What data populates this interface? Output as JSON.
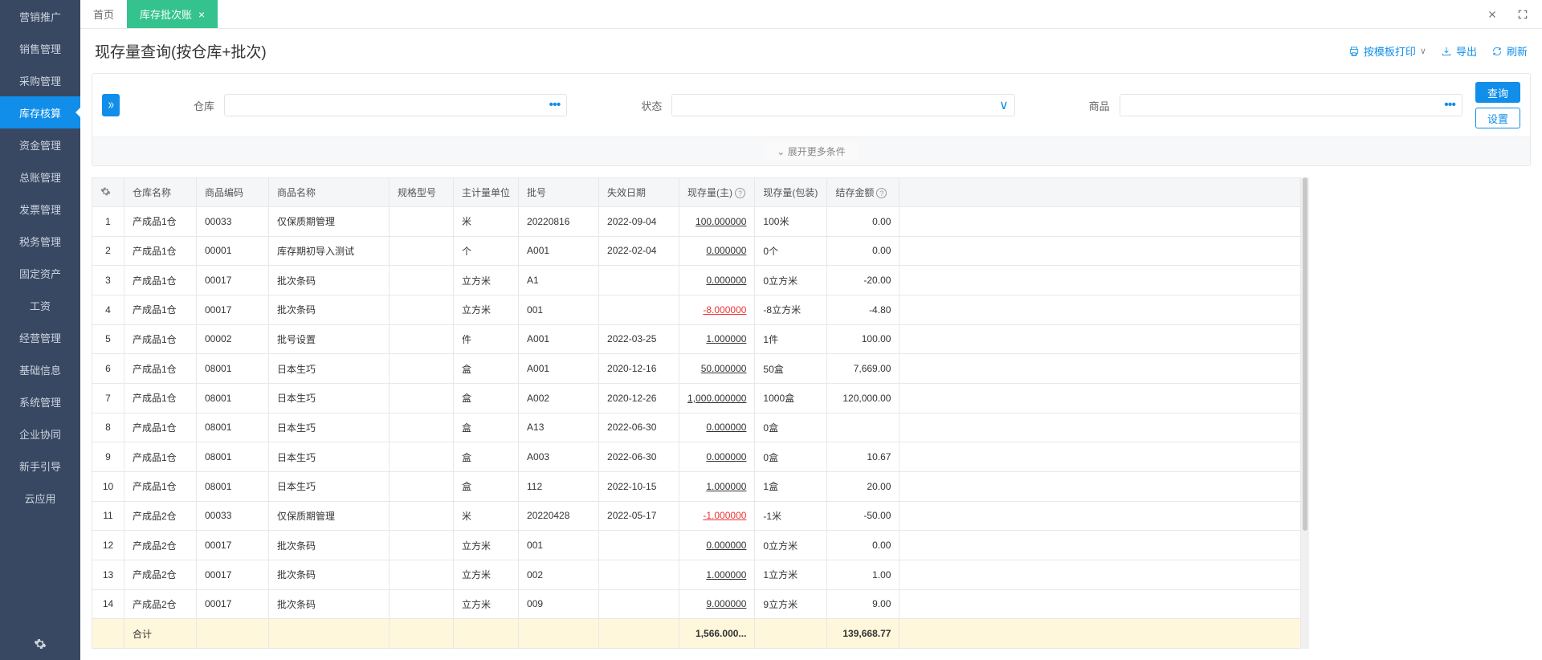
{
  "sidebar": {
    "items": [
      {
        "label": "营销推广"
      },
      {
        "label": "销售管理"
      },
      {
        "label": "采购管理"
      },
      {
        "label": "库存核算",
        "active": true
      },
      {
        "label": "资金管理"
      },
      {
        "label": "总账管理"
      },
      {
        "label": "发票管理"
      },
      {
        "label": "税务管理"
      },
      {
        "label": "固定资产"
      },
      {
        "label": "工资"
      },
      {
        "label": "经营管理"
      },
      {
        "label": "基础信息"
      },
      {
        "label": "系统管理"
      },
      {
        "label": "企业协同"
      },
      {
        "label": "新手引导"
      },
      {
        "label": "云应用"
      }
    ]
  },
  "tabs": {
    "home": "首页",
    "items": [
      {
        "label": "库存批次账",
        "active": true
      }
    ]
  },
  "page": {
    "title": "现存量查询(按仓库+批次)",
    "actions": {
      "print": "按模板打印",
      "export": "导出",
      "refresh": "刷新"
    }
  },
  "filters": {
    "warehouse": {
      "label": "仓库"
    },
    "status": {
      "label": "状态"
    },
    "product": {
      "label": "商品"
    },
    "query_btn": "查询",
    "settings_btn": "设置",
    "expand": "展开更多条件"
  },
  "table": {
    "headers": {
      "idx": "",
      "warehouse": "仓库名称",
      "code": "商品编码",
      "name": "商品名称",
      "spec": "规格型号",
      "unit": "主计量单位",
      "batch": "批号",
      "expire": "失效日期",
      "qty": "现存量(主)",
      "pkg": "现存量(包装)",
      "amt": "结存金额"
    },
    "rows": [
      {
        "idx": "1",
        "wh": "产成品1仓",
        "code": "00033",
        "name": "仅保质期管理",
        "spec": "",
        "unit": "米",
        "batch": "20220816",
        "exp": "2022-09-04",
        "qty": "100.000000",
        "pkg": "100米",
        "amt": "0.00"
      },
      {
        "idx": "2",
        "wh": "产成品1仓",
        "code": "00001",
        "name": "库存期初导入测试",
        "spec": "",
        "unit": "个",
        "batch": "A001",
        "exp": "2022-02-04",
        "qty": "0.000000",
        "pkg": "0个",
        "amt": "0.00"
      },
      {
        "idx": "3",
        "wh": "产成品1仓",
        "code": "00017",
        "name": "批次条码",
        "spec": "",
        "unit": "立方米",
        "batch": "A1",
        "exp": "",
        "qty": "0.000000",
        "pkg": "0立方米",
        "amt": "-20.00",
        "amt_neg": true
      },
      {
        "idx": "4",
        "wh": "产成品1仓",
        "code": "00017",
        "name": "批次条码",
        "spec": "",
        "unit": "立方米",
        "batch": "001",
        "exp": "",
        "qty": "-8.000000",
        "qty_neg": true,
        "pkg": "-8立方米",
        "pkg_neg": true,
        "amt": "-4.80",
        "amt_neg": true
      },
      {
        "idx": "5",
        "wh": "产成品1仓",
        "code": "00002",
        "name": "批号设置",
        "spec": "",
        "unit": "件",
        "batch": "A001",
        "exp": "2022-03-25",
        "qty": "1.000000",
        "pkg": "1件",
        "amt": "100.00"
      },
      {
        "idx": "6",
        "wh": "产成品1仓",
        "code": "08001",
        "name": "日本生巧",
        "spec": "",
        "unit": "盒",
        "batch": "A001",
        "exp": "2020-12-16",
        "qty": "50.000000",
        "pkg": "50盒",
        "amt": "7,669.00"
      },
      {
        "idx": "7",
        "wh": "产成品1仓",
        "code": "08001",
        "name": "日本生巧",
        "spec": "",
        "unit": "盒",
        "batch": "A002",
        "exp": "2020-12-26",
        "qty": "1,000.000000",
        "pkg": "1000盒",
        "amt": "120,000.00"
      },
      {
        "idx": "8",
        "wh": "产成品1仓",
        "code": "08001",
        "name": "日本生巧",
        "spec": "",
        "unit": "盒",
        "batch": "A13",
        "exp": "2022-06-30",
        "qty": "0.000000",
        "pkg": "0盒",
        "amt": ""
      },
      {
        "idx": "9",
        "wh": "产成品1仓",
        "code": "08001",
        "name": "日本生巧",
        "spec": "",
        "unit": "盒",
        "batch": "A003",
        "exp": "2022-06-30",
        "qty": "0.000000",
        "pkg": "0盒",
        "amt": "10.67"
      },
      {
        "idx": "10",
        "wh": "产成品1仓",
        "code": "08001",
        "name": "日本生巧",
        "spec": "",
        "unit": "盒",
        "batch": "112",
        "exp": "2022-10-15",
        "qty": "1.000000",
        "pkg": "1盒",
        "amt": "20.00"
      },
      {
        "idx": "11",
        "wh": "产成品2仓",
        "code": "00033",
        "name": "仅保质期管理",
        "spec": "",
        "unit": "米",
        "batch": "20220428",
        "exp": "2022-05-17",
        "qty": "-1.000000",
        "qty_neg": true,
        "pkg": "-1米",
        "pkg_neg": true,
        "amt": "-50.00",
        "amt_neg": true
      },
      {
        "idx": "12",
        "wh": "产成品2仓",
        "code": "00017",
        "name": "批次条码",
        "spec": "",
        "unit": "立方米",
        "batch": "001",
        "exp": "",
        "qty": "0.000000",
        "pkg": "0立方米",
        "amt": "0.00"
      },
      {
        "idx": "13",
        "wh": "产成品2仓",
        "code": "00017",
        "name": "批次条码",
        "spec": "",
        "unit": "立方米",
        "batch": "002",
        "exp": "",
        "qty": "1.000000",
        "pkg": "1立方米",
        "amt": "1.00"
      },
      {
        "idx": "14",
        "wh": "产成品2仓",
        "code": "00017",
        "name": "批次条码",
        "spec": "",
        "unit": "立方米",
        "batch": "009",
        "exp": "",
        "qty": "9.000000",
        "pkg": "9立方米",
        "amt": "9.00"
      }
    ],
    "total": {
      "label": "合计",
      "qty": "1,566.000...",
      "amt": "139,668.77"
    }
  }
}
